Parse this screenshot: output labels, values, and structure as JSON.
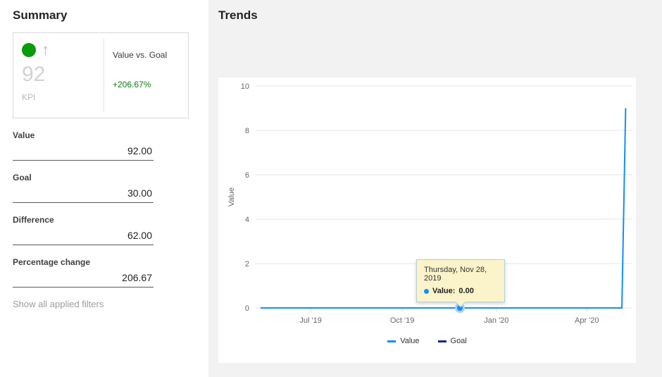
{
  "summary": {
    "title": "Summary",
    "kpi_card": {
      "status_icon": "green-circle",
      "trend_icon": "up-arrow",
      "value": "92",
      "label": "KPI",
      "comparison_label": "Value vs. Goal",
      "comparison_value": "+206.67%",
      "status_color": "#0c9b0c",
      "change_color": "#0b7c0b"
    },
    "fields": [
      {
        "label": "Value",
        "value": "92.00"
      },
      {
        "label": "Goal",
        "value": "30.00"
      },
      {
        "label": "Difference",
        "value": "62.00"
      },
      {
        "label": "Percentage change",
        "value": "206.67"
      }
    ],
    "filters_link": "Show all applied filters"
  },
  "trends": {
    "title": "Trends",
    "tooltip": {
      "date": "Thursday, Nov 28, 2019",
      "label": "Value:",
      "value": "0.00",
      "background": "#fbf3c9",
      "border": "#b9cfdd"
    },
    "legend": [
      {
        "label": "Value",
        "color": "#118DFF"
      },
      {
        "label": "Goal",
        "color": "#12239E"
      }
    ]
  },
  "chart_data": {
    "type": "line",
    "title": "Trends",
    "xlabel": "",
    "ylabel": "Value",
    "ylim": [
      0,
      10
    ],
    "y_ticks": [
      0,
      2,
      4,
      6,
      8,
      10
    ],
    "x_tick_labels": [
      "Jul '19",
      "Oct '19",
      "Jan '20",
      "Apr '20"
    ],
    "x_tick_positions": [
      0.146,
      0.389,
      0.639,
      0.879
    ],
    "grid": "horizontal",
    "legend_position": "bottom-center",
    "series": [
      {
        "name": "Value",
        "color": "#118DFF",
        "points": [
          [
            0.013,
            0
          ],
          [
            0.3,
            0
          ],
          [
            0.542,
            0
          ],
          [
            0.8,
            0
          ],
          [
            0.972,
            0
          ],
          [
            0.982,
            9
          ]
        ]
      },
      {
        "name": "Goal",
        "color": "#12239E",
        "points": []
      }
    ],
    "highlight_point": {
      "x": 0.542,
      "y": 0,
      "date": "Thursday, Nov 28, 2019",
      "value": "0.00"
    }
  }
}
